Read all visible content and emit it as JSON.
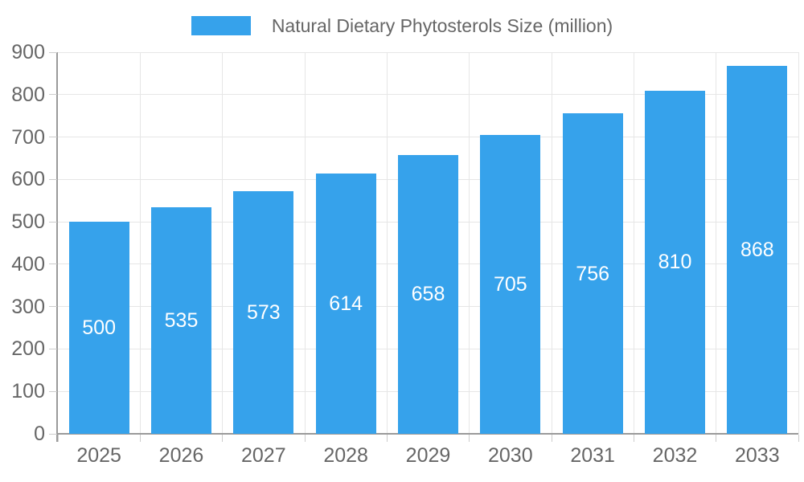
{
  "legend": {
    "label": "Natural Dietary Phytosterols Size (million)"
  },
  "colors": {
    "bar": "#36A2EB",
    "bar_label_text": "#ffffff",
    "axis_text": "#666666",
    "gridline": "#e6e6e6",
    "axis_line": "#9a9a9a",
    "tick_mark": "#cccccc",
    "background": "#ffffff"
  },
  "chart_data": {
    "type": "bar",
    "title": "Natural Dietary Phytosterols Size (million)",
    "categories": [
      "2025",
      "2026",
      "2027",
      "2028",
      "2029",
      "2030",
      "2031",
      "2032",
      "2033"
    ],
    "values": [
      500,
      535,
      573,
      614,
      658,
      705,
      756,
      810,
      868
    ],
    "xlabel": "",
    "ylabel": "",
    "ylim": [
      0,
      900
    ],
    "ytick_step": 100,
    "ytick_labels": [
      "0",
      "100",
      "200",
      "300",
      "400",
      "500",
      "600",
      "700",
      "800",
      "900"
    ],
    "grid": true,
    "legend_position": "top-center",
    "value_labels": "inside-center-white"
  }
}
